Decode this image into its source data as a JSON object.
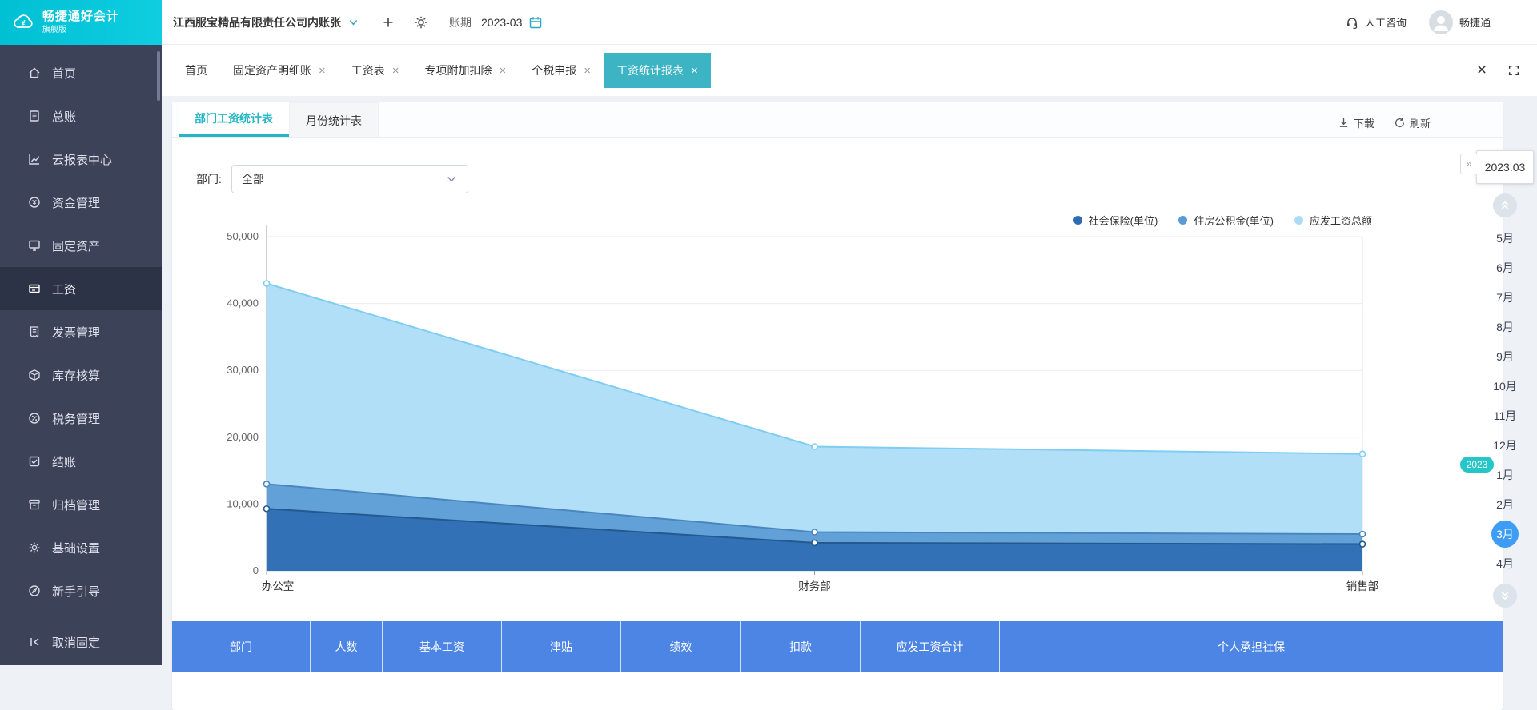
{
  "icons": {
    "close": "×",
    "collapse": "»",
    "plus": "+"
  },
  "brand": {
    "name": "畅捷通好会计",
    "edition": "旗舰版"
  },
  "header": {
    "company": "江西服宝精品有限责任公司内账张",
    "period_label": "账期",
    "period_value": "2023-03",
    "support_label": "人工咨询",
    "user_name": "畅捷通"
  },
  "sidebar": {
    "items": [
      {
        "label": "首页"
      },
      {
        "label": "总账"
      },
      {
        "label": "云报表中心"
      },
      {
        "label": "资金管理"
      },
      {
        "label": "固定资产"
      },
      {
        "label": "工资"
      },
      {
        "label": "发票管理"
      },
      {
        "label": "库存核算"
      },
      {
        "label": "税务管理"
      },
      {
        "label": "结账"
      },
      {
        "label": "归档管理"
      },
      {
        "label": "基础设置"
      },
      {
        "label": "新手引导"
      },
      {
        "label": "取消固定"
      }
    ]
  },
  "tabs": [
    {
      "label": "首页",
      "closable": false,
      "active": false
    },
    {
      "label": "固定资产明细账",
      "closable": true,
      "active": false
    },
    {
      "label": "工资表",
      "closable": true,
      "active": false
    },
    {
      "label": "专项附加扣除",
      "closable": true,
      "active": false
    },
    {
      "label": "个税申报",
      "closable": true,
      "active": false
    },
    {
      "label": "工资统计报表",
      "closable": true,
      "active": true
    }
  ],
  "subtabs": [
    {
      "label": "部门工资统计表",
      "active": true
    },
    {
      "label": "月份统计表",
      "active": false
    }
  ],
  "toolbar": {
    "download_label": "下载",
    "refresh_label": "刷新"
  },
  "filter": {
    "label": "部门:",
    "value": "全部"
  },
  "chart_data": {
    "type": "area",
    "categories": [
      "办公室",
      "财务部",
      "销售部"
    ],
    "series": [
      {
        "name": "社会保险(单位)",
        "color": "#2e6cb2",
        "line_color": "#24598f",
        "values": [
          9300,
          4200,
          4000
        ]
      },
      {
        "name": "住房公积金(单位)",
        "color": "#5b9bd5",
        "line_color": "#4a86bd",
        "values": [
          13000,
          5800,
          5500
        ]
      },
      {
        "name": "应发工资总额",
        "color": "#aadcf7",
        "line_color": "#7fcdf2",
        "values": [
          43000,
          18600,
          17500
        ]
      }
    ],
    "ylim": [
      0,
      50000
    ],
    "ytick_step": 10000,
    "grid": true,
    "legend_position": "top-right"
  },
  "table": {
    "columns": [
      "部门",
      "人数",
      "基本工资",
      "津贴",
      "绩效",
      "扣款",
      "应发工资合计",
      "个人承担社保"
    ]
  },
  "month_panel": {
    "current": "2023.03",
    "year_badge": "2023",
    "months": [
      "5月",
      "6月",
      "7月",
      "8月",
      "9月",
      "10月",
      "11月",
      "12月",
      "1月",
      "2月",
      "3月",
      "4月"
    ],
    "selected_month": "3月"
  },
  "colors": {
    "brand_cyan": "#06c4d7",
    "active_tab": "#3cb4c4",
    "subtab_accent": "#23b6c5",
    "sidebar_bg": "#3c4358",
    "sidebar_selected": "#2d3347",
    "page_bg": "#eef1f6",
    "table_header_bg": "#4d85e4",
    "month_selected": "#3d9cf4",
    "year_badge_bg": "#26c5c7"
  }
}
